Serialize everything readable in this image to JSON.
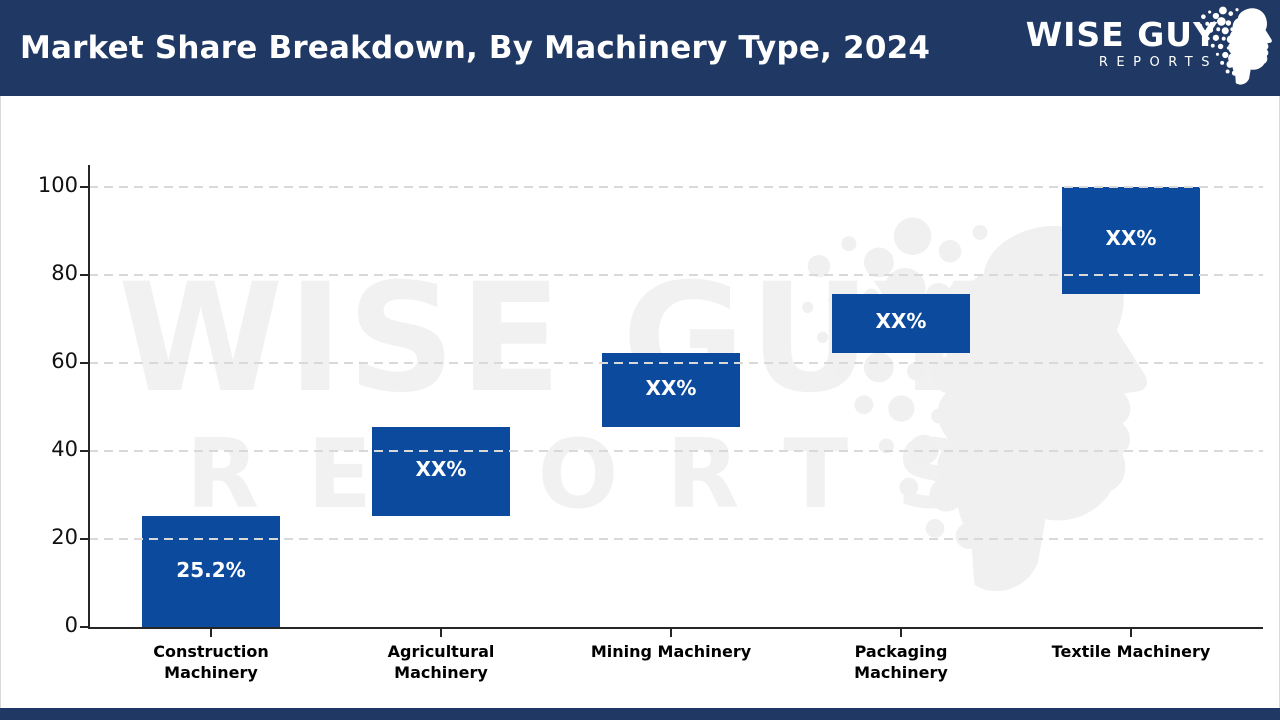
{
  "header": {
    "title": "Market Share Breakdown, By Machinery Type, 2024",
    "logo": {
      "brand": "WISE GUY",
      "sub": "REPORTS"
    }
  },
  "watermark": {
    "brand": "WISE GUY",
    "sub": "REPORTS"
  },
  "chart_data": {
    "type": "bar",
    "subtype": "floating-waterfall",
    "title": "Market Share Breakdown, By Machinery Type, 2024",
    "categories": [
      "Construction Machinery",
      "Agricultural Machinery",
      "Mining Machinery",
      "Packaging Machinery",
      "Textile Machinery"
    ],
    "category_label_lines": [
      [
        "Construction",
        "Machinery"
      ],
      [
        "Agricultural",
        "Machinery"
      ],
      [
        "Mining Machinery"
      ],
      [
        "Packaging",
        "Machinery"
      ],
      [
        "Textile Machinery"
      ]
    ],
    "series": [
      {
        "category": "Construction Machinery",
        "start": 0,
        "end": 25.2,
        "label": "25.2%"
      },
      {
        "category": "Agricultural Machinery",
        "start": 25.2,
        "end": 45.5,
        "label": "XX%"
      },
      {
        "category": "Mining Machinery",
        "start": 45.5,
        "end": 62.3,
        "label": "XX%"
      },
      {
        "category": "Packaging Machinery",
        "start": 62.3,
        "end": 75.7,
        "label": "XX%"
      },
      {
        "category": "Textile Machinery",
        "start": 75.7,
        "end": 100,
        "label": "XX%"
      }
    ],
    "xlabel": "",
    "ylabel": "",
    "ylim": [
      0,
      100
    ],
    "yticks": [
      0,
      20,
      40,
      60,
      80,
      100
    ],
    "grid": "horizontal-dashed",
    "grid_above_bars": true,
    "legend": "none"
  },
  "colors": {
    "header_bg": "#1f3864",
    "footer_bg": "#1f3864",
    "bar": "#0c4a9e",
    "bar_label": "#ffffff",
    "grid": "#d9d9d9",
    "axis": "#262626",
    "watermark": "#f1f1f1",
    "title_text": "#ffffff"
  }
}
